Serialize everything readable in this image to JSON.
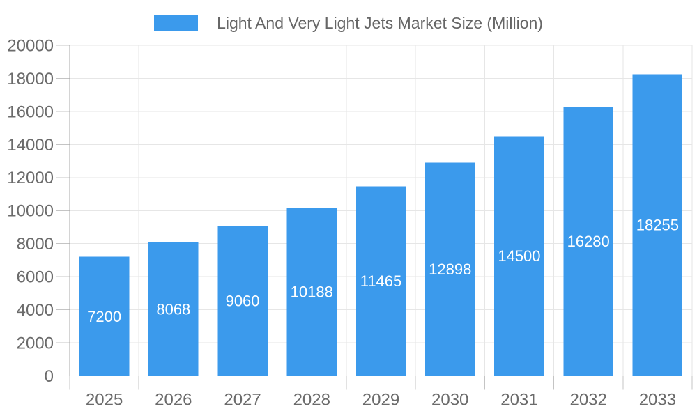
{
  "chart_data": {
    "type": "bar",
    "title": "Light And Very Light Jets Market Size (Million)",
    "categories": [
      "2025",
      "2026",
      "2027",
      "2028",
      "2029",
      "2030",
      "2031",
      "2032",
      "2033"
    ],
    "values": [
      7200,
      8068,
      9060,
      10188,
      11465,
      12898,
      14500,
      16280,
      18255
    ],
    "xlabel": "",
    "ylabel": "",
    "ylim": [
      0,
      20000
    ],
    "ytick_step": 2000,
    "grid": true,
    "legend_position": "top",
    "colors": {
      "bar": "#3B9AEC",
      "bar_label": "#FFFFFF",
      "axis_text": "#6B6B6B",
      "legend_text": "#666666",
      "gridline": "#E6E6E6",
      "axis_line": "#A8A8A8",
      "tick": "#C4C4C4",
      "background": "#FFFFFF"
    }
  }
}
